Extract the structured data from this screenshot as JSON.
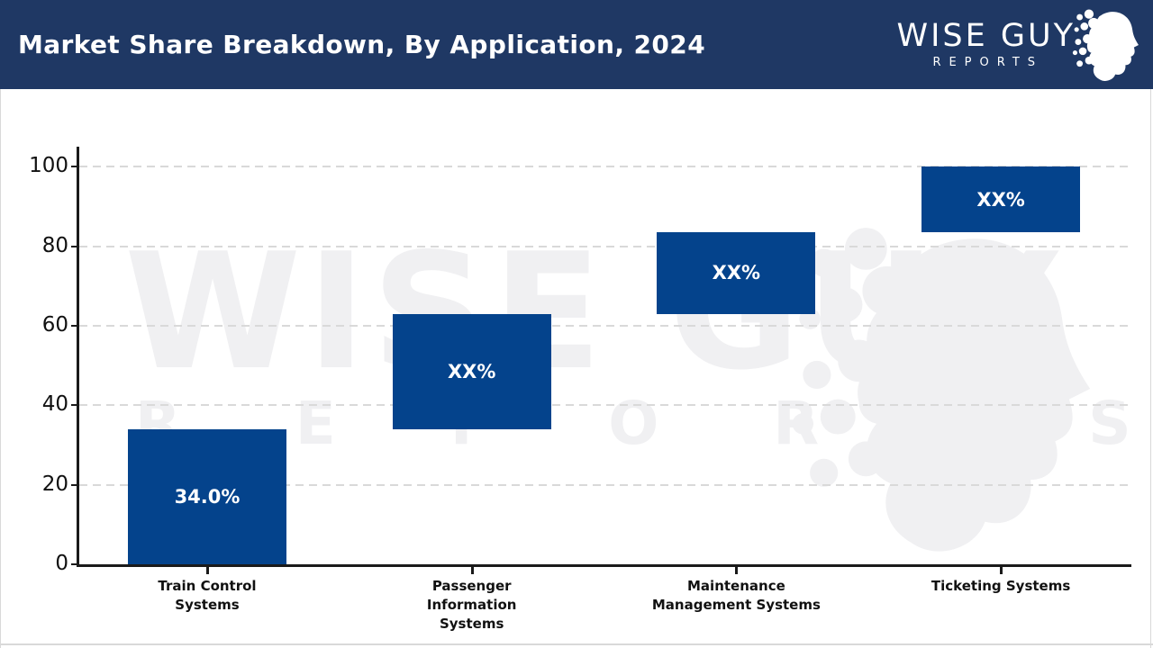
{
  "header": {
    "title": "Market Share Breakdown, By Application, 2024",
    "logo": {
      "line1": "WISE GUY",
      "line2": "REPORTS"
    },
    "background_color": "#1F3864"
  },
  "watermark": {
    "line1": "WISE GUY",
    "line2": "R E P O R T S"
  },
  "colors": {
    "bar": "#04438C",
    "header_navy": "#1F3864",
    "gridline": "#d9d9d9",
    "axis": "#1a1a1a",
    "watermark_gray": "#f0f0f2",
    "bar_label_text": "#ffffff"
  },
  "chart_data": {
    "type": "bar",
    "subtype": "waterfall",
    "title": "Market Share Breakdown, By Application, 2024",
    "categories": [
      "Train Control\nSystems",
      "Passenger\nInformation\nSystems",
      "Maintenance\nManagement Systems",
      "Ticketing Systems"
    ],
    "segments": [
      {
        "category": "Train Control Systems",
        "start": 0,
        "end": 34,
        "label": "34.0%"
      },
      {
        "category": "Passenger Information Systems",
        "start": 34,
        "end": 63,
        "label": "XX%"
      },
      {
        "category": "Maintenance Management Systems",
        "start": 63,
        "end": 83.5,
        "label": "XX%"
      },
      {
        "category": "Ticketing Systems",
        "start": 83.5,
        "end": 100,
        "label": "XX%"
      }
    ],
    "y_ticks": [
      0,
      20,
      40,
      60,
      80,
      100
    ],
    "ylim": [
      0,
      105
    ],
    "xlabel": "",
    "ylabel": "",
    "grid": "horizontal-dashed",
    "legend": "none",
    "bar_color": "#04438C"
  }
}
